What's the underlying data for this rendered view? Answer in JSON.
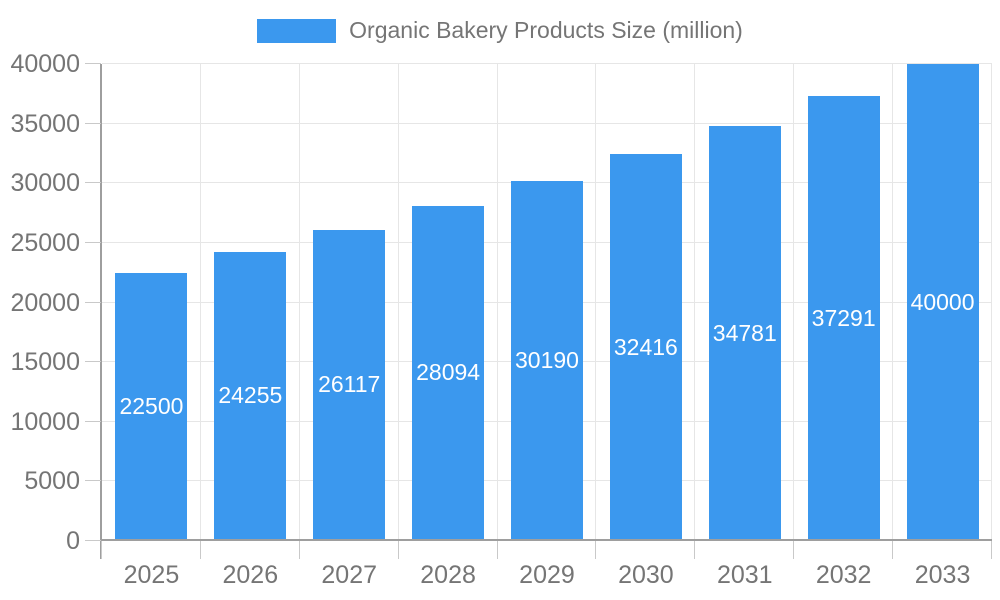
{
  "chart_data": {
    "type": "bar",
    "title": "Organic Bakery Products Size (million)",
    "categories": [
      "2025",
      "2026",
      "2027",
      "2028",
      "2029",
      "2030",
      "2031",
      "2032",
      "2033"
    ],
    "values": [
      22500,
      24255,
      26117,
      28094,
      30190,
      32416,
      34781,
      37291,
      40000
    ],
    "bar_labels": [
      "22500",
      "24255",
      "26117",
      "28094",
      "30190",
      "32416",
      "34781",
      "37291",
      "40000"
    ],
    "xlabel": "",
    "ylabel": "",
    "ylim": [
      0,
      40000
    ],
    "yticks": [
      0,
      5000,
      10000,
      15000,
      20000,
      25000,
      30000,
      35000,
      40000
    ],
    "ytick_labels": [
      "0",
      "5000",
      "10000",
      "15000",
      "20000",
      "25000",
      "30000",
      "35000",
      "40000"
    ],
    "grid": true,
    "legend_position": "top",
    "colors": {
      "series": "#3b98ee",
      "bar_value_text": "#ffffff",
      "axis_label_text": "#757575",
      "legend_text": "#757575",
      "axis_line": "#9e9e9e",
      "grid_line": "#e6e6e6",
      "tick_line": "#c9c9c9",
      "background": "#ffffff"
    }
  }
}
